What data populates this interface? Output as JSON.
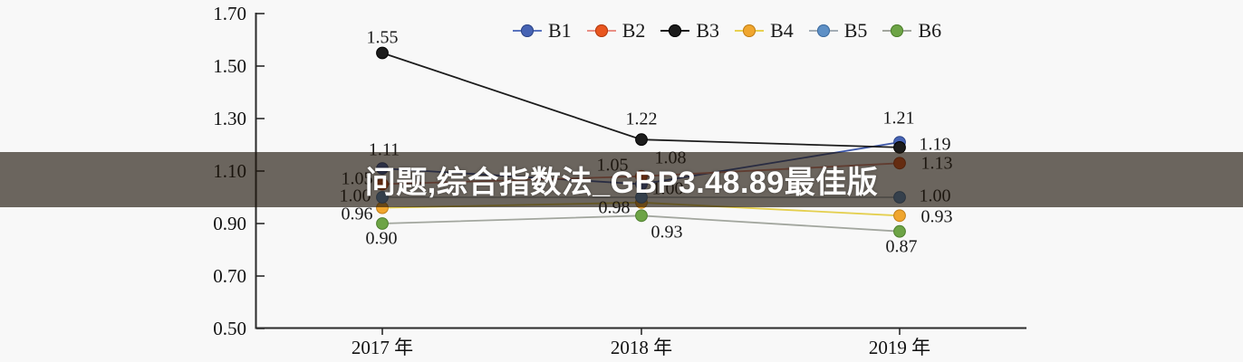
{
  "overlay": {
    "title": "问题,综合指数法_GBP3.48.89最佳版"
  },
  "y_axis": {
    "ticks": [
      "1.70",
      "1.50",
      "1.30",
      "1.10",
      "0.90",
      "0.70",
      "0.50"
    ],
    "min": 0.5,
    "max": 1.7,
    "step": 0.2
  },
  "x_axis": {
    "labels": [
      "2017 年",
      "2018 年",
      "2019 年"
    ]
  },
  "chart_data": {
    "type": "line",
    "categories": [
      "2017 年",
      "2018 年",
      "2019 年"
    ],
    "ylim": [
      0.5,
      1.7
    ],
    "grid": false,
    "legend_position": "top",
    "series": [
      {
        "name": "B1",
        "values": [
          1.11,
          1.05,
          1.21
        ],
        "point_labels": [
          "1.11",
          "1.05",
          "1.21"
        ],
        "marker_color": "#4663b4",
        "marker_edge": "#2e4585",
        "line_color": "#3d57a8",
        "legend_line_color": "#5a74be"
      },
      {
        "name": "B2",
        "values": [
          1.05,
          1.08,
          1.13
        ],
        "point_labels": [
          "1.05",
          "1.08",
          "1.13"
        ],
        "marker_color": "#e9561f",
        "marker_edge": "#b03c12",
        "line_color": "#d98377",
        "legend_line_color": "#e99086"
      },
      {
        "name": "B3",
        "values": [
          1.55,
          1.22,
          1.19
        ],
        "point_labels": [
          "1.55",
          "1.22",
          "1.19"
        ],
        "marker_color": "#1c1c1c",
        "marker_edge": "#000000",
        "line_color": "#1c1c1c",
        "legend_line_color": "#1c1c1c"
      },
      {
        "name": "B4",
        "values": [
          0.96,
          0.98,
          0.93
        ],
        "point_labels": [
          "0.96",
          "0.98",
          "0.93"
        ],
        "marker_color": "#f0a62e",
        "marker_edge": "#c07f1a",
        "line_color": "#e4cf4e",
        "legend_line_color": "#e8d050"
      },
      {
        "name": "B5",
        "values": [
          1.0,
          1.0,
          1.0
        ],
        "point_labels": [
          "1.00",
          "1.00",
          "1.00"
        ],
        "marker_color": "#5e90c6",
        "marker_edge": "#3e6b9e",
        "line_color": "#a4aeb6",
        "legend_line_color": "#a4aeb6"
      },
      {
        "name": "B6",
        "values": [
          0.9,
          0.93,
          0.87
        ],
        "point_labels": [
          "0.90",
          "0.93",
          "0.87"
        ],
        "marker_color": "#6da446",
        "marker_edge": "#4e7f2e",
        "line_color": "#a2a69e",
        "legend_line_color": "#a2a69e"
      }
    ]
  },
  "colors": {
    "background": "#f8f8f8",
    "axis": "#2a2a2a",
    "banner_overlay": "rgba(30,22,10,0.65)",
    "banner_text": "#ffffff",
    "label_text": "#1a1a1a"
  }
}
